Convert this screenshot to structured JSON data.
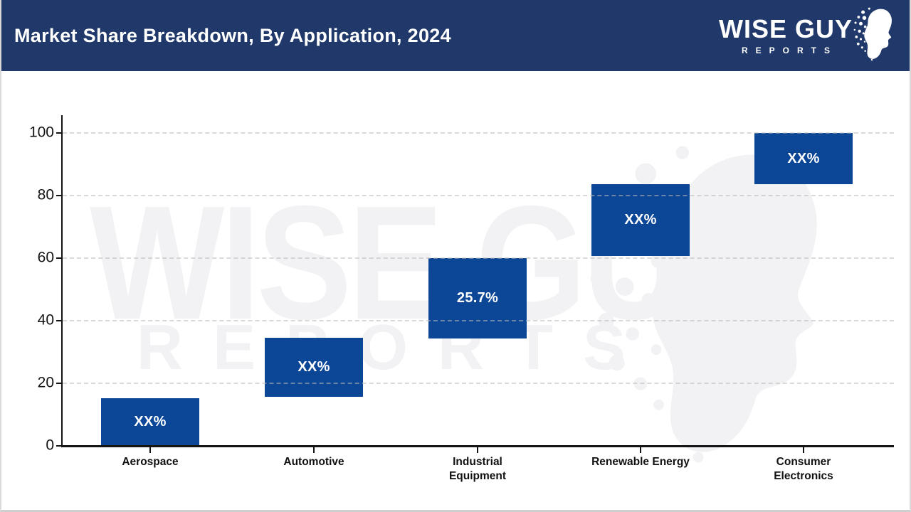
{
  "header": {
    "title": "Market Share Breakdown, By Application, 2024",
    "bg_color": "#20396a",
    "logo": {
      "line1": "WISE GUY",
      "line2": "REPORTS"
    }
  },
  "watermark": {
    "line1": "WISE GUY",
    "line2": "REPORTS"
  },
  "colors": {
    "bar_blue": "#0c4696",
    "header_navy": "#20396a",
    "bar_label_white": "#ffffff",
    "watermark_gray": "#f2f2f4"
  },
  "chart_data": {
    "type": "bar",
    "subtype": "waterfall",
    "title": "Market Share Breakdown, By Application, 2024",
    "categories": [
      "Aerospace",
      "Automotive",
      "Industrial\nEquipment",
      "Renewable Energy",
      "Consumer\nElectronics"
    ],
    "segments": [
      {
        "category": "Aerospace",
        "start": 0,
        "end": 15.2,
        "size": 15.2,
        "label": "XX%"
      },
      {
        "category": "Automotive",
        "start": 15.5,
        "end": 34.5,
        "size": 19.0,
        "label": "XX%"
      },
      {
        "category": "Industrial Equipment",
        "start": 34.3,
        "end": 60.0,
        "size": 25.7,
        "label": "25.7%"
      },
      {
        "category": "Renewable Energy",
        "start": 60.5,
        "end": 83.6,
        "size": 23.1,
        "label": "XX%"
      },
      {
        "category": "Consumer Electronics",
        "start": 83.6,
        "end": 99.8,
        "size": 16.2,
        "label": "XX%"
      }
    ],
    "yticks": [
      0,
      20,
      40,
      60,
      80,
      100
    ],
    "ylim": [
      0,
      106
    ],
    "xlabel": "",
    "ylabel": "",
    "grid": "dashed-horizontal",
    "legend": "none",
    "bar_color": "#0c4696",
    "value_label_color": "#ffffff"
  }
}
